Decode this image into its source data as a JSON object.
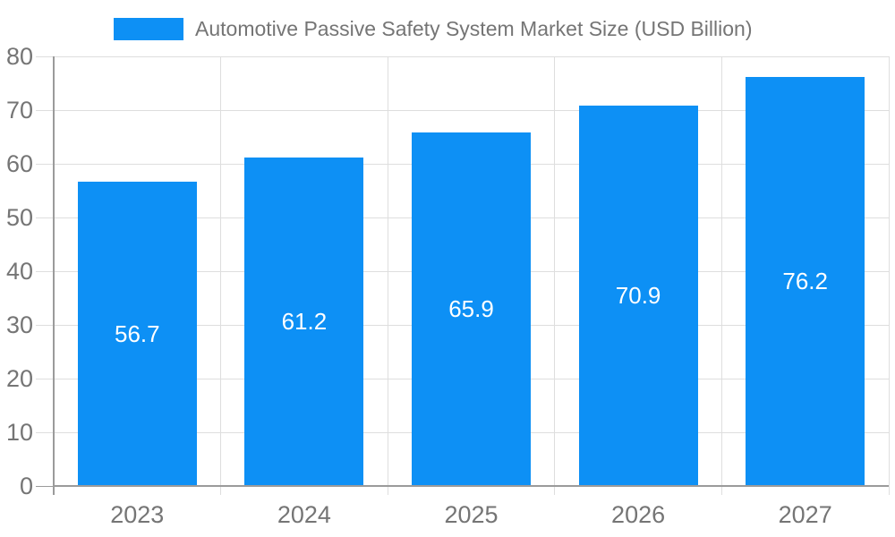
{
  "chart_data": {
    "type": "bar",
    "title": "Automotive Passive Safety System Market Size (USD Billion)",
    "legend_label": "Automotive Passive Safety System Market Size (USD Billion)",
    "legend_position": "top",
    "categories": [
      "2023",
      "2024",
      "2025",
      "2026",
      "2027"
    ],
    "values": [
      56.7,
      61.2,
      65.9,
      70.9,
      76.2
    ],
    "data_labels": [
      "56.7",
      "61.2",
      "65.9",
      "70.9",
      "76.2"
    ],
    "xlabel": "",
    "ylabel": "",
    "ylim": [
      0,
      80
    ],
    "yticks": [
      0,
      10,
      20,
      30,
      40,
      50,
      60,
      70,
      80
    ],
    "grid": true,
    "colors": {
      "bar": "#0D90F5",
      "axis_line": "#9B9B9B",
      "gridline": "#DEDEDE",
      "tick_text": "#757575",
      "legend_text": "#757575",
      "value_label_text": "#FFFFFF",
      "background": "#FFFFFF"
    }
  }
}
